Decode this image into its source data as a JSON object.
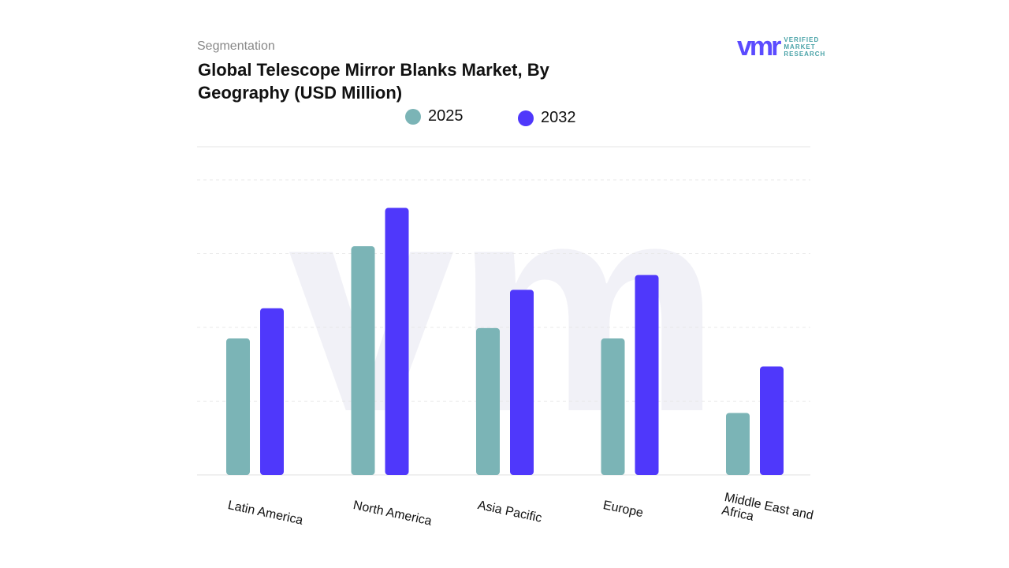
{
  "header": {
    "segment_label": "Segmentation",
    "title": "Global Telescope Mirror Blanks Market, By Geography (USD Million)"
  },
  "logo": {
    "mark": "vmr",
    "text_lines": [
      "VERIFIED",
      "MARKET",
      "RESEARCH"
    ]
  },
  "colors": {
    "s2025": "#7bb4b6",
    "s2032": "#4f38fb"
  },
  "chart_data": {
    "type": "bar",
    "title": "Global Telescope Mirror Blanks Market, By Geography (USD Million)",
    "categories": [
      "Latin America",
      "North America",
      "Asia Pacific",
      "Europe",
      "Middle East and Africa"
    ],
    "series": [
      {
        "name": "2025",
        "values": [
          1.85,
          3.1,
          1.99,
          1.85,
          0.84
        ]
      },
      {
        "name": "2032",
        "values": [
          2.26,
          3.62,
          2.51,
          2.71,
          1.47
        ]
      }
    ],
    "ylim": [
      0,
      4
    ],
    "grid": true,
    "legend": "top-center",
    "xlabel": "",
    "ylabel": ""
  }
}
